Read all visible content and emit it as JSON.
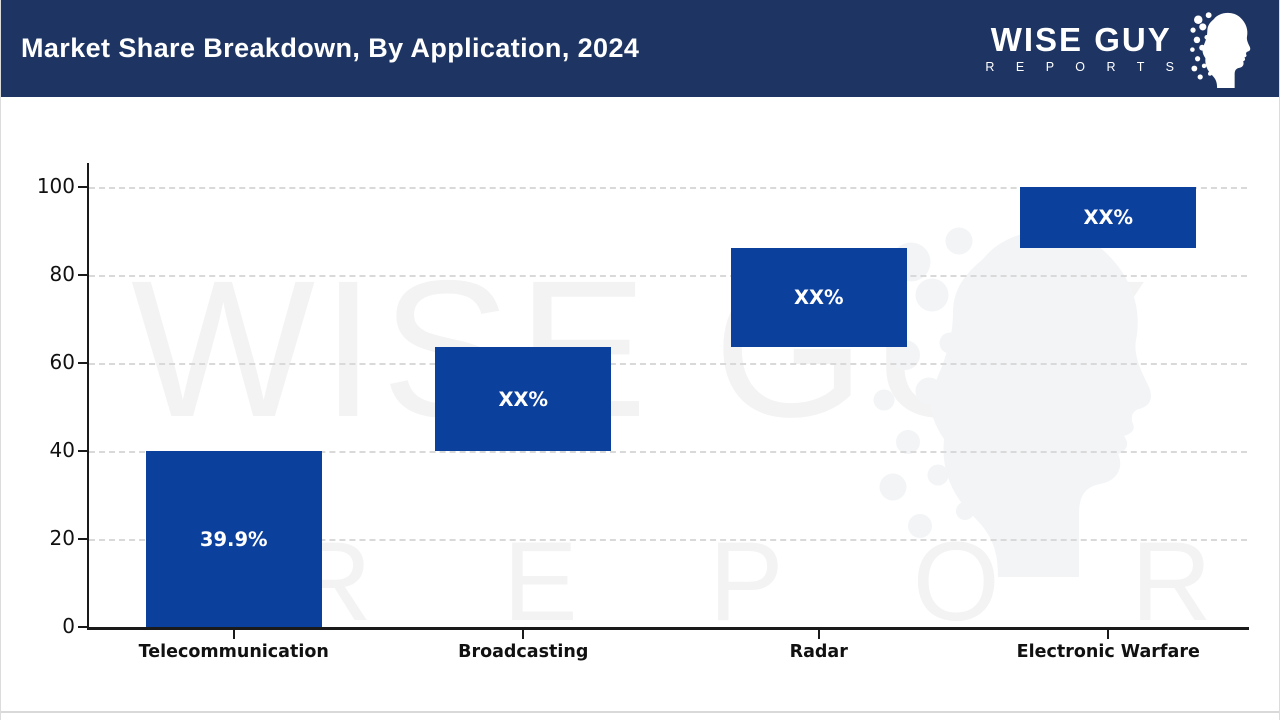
{
  "header": {
    "title": "Market Share Breakdown, By Application, 2024",
    "bg_color": "#1e3563",
    "logo": {
      "line1": "WISE GUY",
      "line2": "R E P O R T S",
      "icon": "dotted-head-profile"
    }
  },
  "watermark": {
    "line1": "WISE GUY",
    "line2": "R E P O R T S",
    "icon": "dotted-head-profile"
  },
  "chart_data": {
    "type": "bar",
    "subtype": "waterfall",
    "title": "Market Share Breakdown, By Application, 2024",
    "categories": [
      "Telecommunication",
      "Broadcasting",
      "Radar",
      "Electronic Warfare"
    ],
    "segments": [
      {
        "category": "Telecommunication",
        "from": 0,
        "to": 39.9,
        "label": "39.9%"
      },
      {
        "category": "Broadcasting",
        "from": 39.9,
        "to": 63.6,
        "label": "XX%"
      },
      {
        "category": "Radar",
        "from": 63.6,
        "to": 86.1,
        "label": "XX%"
      },
      {
        "category": "Electronic Warfare",
        "from": 86.1,
        "to": 100,
        "label": "XX%"
      }
    ],
    "xlabel": "",
    "ylabel": "",
    "ylim": [
      0,
      100
    ],
    "yticks": [
      0,
      20,
      40,
      60,
      80,
      100
    ],
    "grid": "horizontal-dashed",
    "legend": "none",
    "bar_color": "#0c409d",
    "bar_label_color": "#ffffff",
    "axis_color": "#1a1a1a",
    "gridline_color": "#d9d9d9"
  }
}
